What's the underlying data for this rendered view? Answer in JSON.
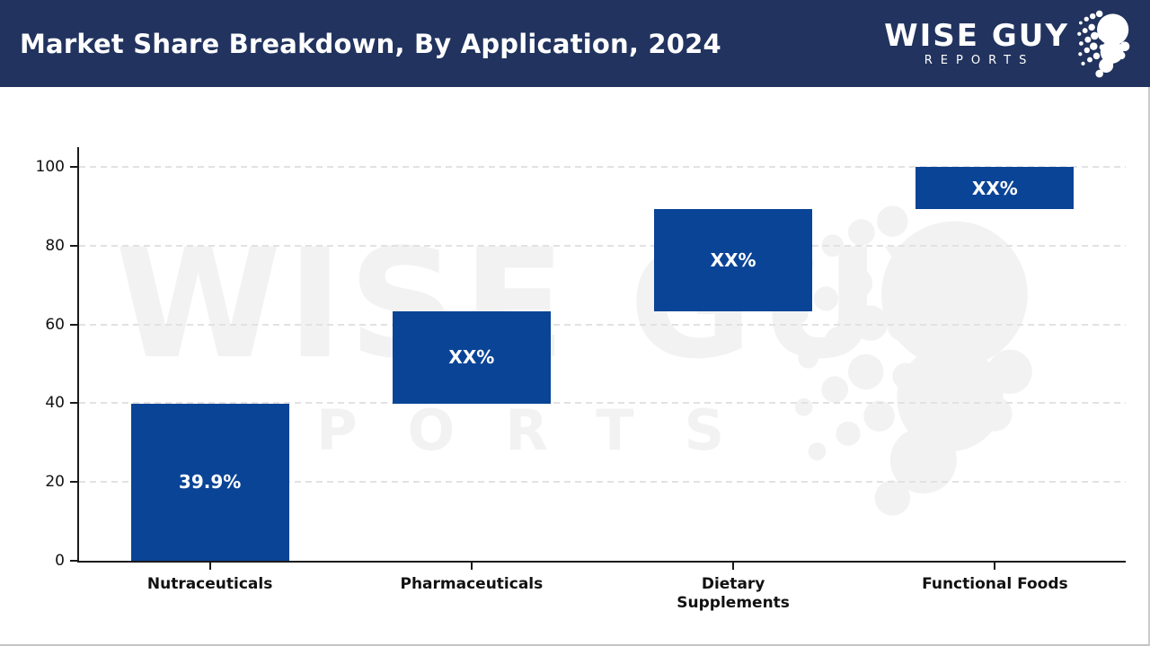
{
  "header": {
    "title": "Market Share Breakdown, By Application, 2024",
    "bg_color": "#21335e",
    "logo": {
      "line1": "WISE GUY",
      "line2": "REPORTS"
    }
  },
  "watermark": {
    "line1": "WISE GUY",
    "line2": "REPORTS"
  },
  "chart_data": {
    "type": "bar",
    "variant": "waterfall-floating-bars",
    "title": "Market Share Breakdown, By Application, 2024",
    "categories": [
      "Nutraceuticals",
      "Pharmaceuticals",
      "Dietary Supplements",
      "Functional Foods"
    ],
    "bars": [
      {
        "category": "Nutraceuticals",
        "start": 0,
        "end": 39.9,
        "label": "39.9%"
      },
      {
        "category": "Pharmaceuticals",
        "start": 39.9,
        "end": 63.4,
        "label": "XX%"
      },
      {
        "category": "Dietary Supplements",
        "start": 63.4,
        "end": 89.2,
        "label": "XX%"
      },
      {
        "category": "Functional Foods",
        "start": 89.2,
        "end": 99.9,
        "label": "XX%"
      }
    ],
    "xlabel": "",
    "ylabel": "",
    "ylim": [
      0,
      105
    ],
    "yticks": [
      0,
      20,
      40,
      60,
      80,
      100
    ],
    "grid": "horizontal-dashed",
    "legend": "none",
    "bar_color": "#0a4496",
    "bar_label_color": "#ffffff",
    "axis_color": "#1a1a1a",
    "grid_color": "#e2e2e2"
  }
}
